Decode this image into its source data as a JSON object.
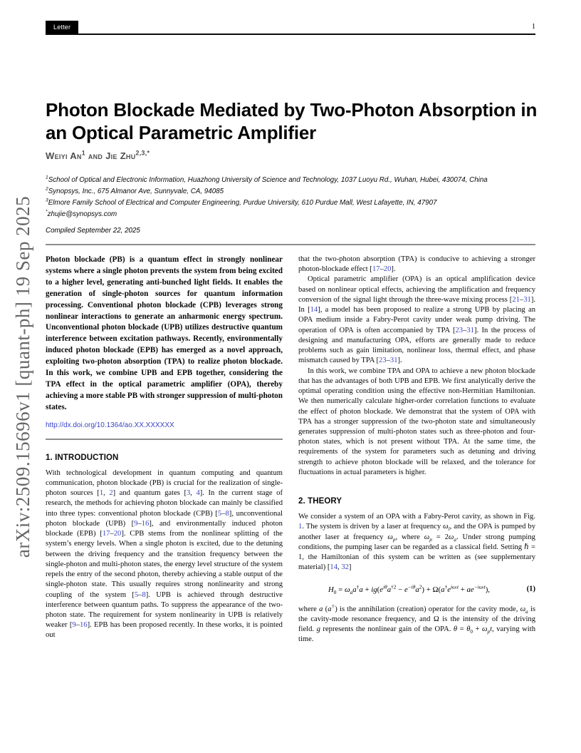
{
  "colors": {
    "link_blue": "#3a45c4",
    "badge_bg": "#000000",
    "badge_text": "#ffffff",
    "author_gray": "#4d4d4d",
    "stamp_gray": "#666666",
    "rule_gray": "#8d8d8d"
  },
  "header": {
    "badge": "Letter",
    "page_number": "1"
  },
  "stamp": {
    "text": "arXiv:2509.15696v1  [quant-ph]  19 Sep 2025"
  },
  "title": "Photon Blockade Mediated by Two-Photon Absorption in an Optical Parametric Amplifier",
  "authors": [
    {
      "t": "Weiyi An",
      "s": "p"
    },
    {
      "t": "1",
      "s": "sup"
    },
    {
      "t": " and Jie Zhu",
      "s": "p"
    },
    {
      "t": "2,3,*",
      "s": "sup"
    }
  ],
  "affiliations": [
    [
      {
        "t": "1",
        "s": "sup"
      },
      {
        "t": "School of Optical and Electronic Information, Huazhong University of Science and Technology, 1037 Luoyu Rd., Wuhan, Hubei, 430074, China",
        "s": "p"
      }
    ],
    [
      {
        "t": "2",
        "s": "sup"
      },
      {
        "t": "Synopsys, Inc., 675 Almanor Ave, Sunnyvale, CA, 94085",
        "s": "p"
      }
    ],
    [
      {
        "t": "3",
        "s": "sup"
      },
      {
        "t": "Elmore Family School of Electrical and Computer Engineering, Purdue University, 610 Purdue Mall, West Lafayette, IN, 47907",
        "s": "p"
      }
    ],
    [
      {
        "t": "*",
        "s": "sup"
      },
      {
        "t": "zhujie@synopsys.com",
        "s": "p"
      }
    ]
  ],
  "compiled": "Compiled September 22, 2025",
  "abstract": "Photon blockade (PB) is a quantum effect in strongly nonlinear systems where a single photon prevents the system from being excited to a higher level, generating anti-bunched light fields. It enables the generation of single-photon sources for quantum information processing. Conventional photon blockade (CPB) leverages strong nonlinear interactions to generate an anharmonic energy spectrum. Unconventional photon blockade (UPB) utilizes destructive quantum interference between excitation pathways. Recently, environmentally induced photon blockade (EPB) has emerged as a novel approach, exploiting two-photon absorption (TPA) to realize photon blockade. In this work, we combine UPB and EPB together, considering the TPA effect in the optical parametric amplifier (OPA), thereby achieving a more stable PB with stronger suppression of multi-photon states.",
  "doi": "http://dx.doi.org/10.1364/ao.XX.XXXXXX",
  "sections": {
    "intro_heading": "1. INTRODUCTION",
    "theory_heading": "2. THEORY"
  },
  "intro_paragraph": [
    {
      "t": "With technological development in quantum computing and quantum communication, photon blockade (PB) is crucial for the realization of single-photon sources [",
      "s": "p"
    },
    {
      "t": "1",
      "s": "link"
    },
    {
      "t": ", ",
      "s": "p"
    },
    {
      "t": "2",
      "s": "link"
    },
    {
      "t": "] and quantum gates [",
      "s": "p"
    },
    {
      "t": "3",
      "s": "link"
    },
    {
      "t": ", ",
      "s": "p"
    },
    {
      "t": "4",
      "s": "link"
    },
    {
      "t": "]. In the current stage of research, the methods for achieving photon blockade can mainly be classified into three types: conventional photon blockade (CPB) [",
      "s": "p"
    },
    {
      "t": "5",
      "s": "link"
    },
    {
      "t": "–",
      "s": "p"
    },
    {
      "t": "8",
      "s": "link"
    },
    {
      "t": "], unconventional photon blockade (UPB) [",
      "s": "p"
    },
    {
      "t": "9",
      "s": "link"
    },
    {
      "t": "–",
      "s": "p"
    },
    {
      "t": "16",
      "s": "link"
    },
    {
      "t": "], and environmentally induced photon blockade (EPB) [",
      "s": "p"
    },
    {
      "t": "17",
      "s": "link"
    },
    {
      "t": "–",
      "s": "p"
    },
    {
      "t": "20",
      "s": "link"
    },
    {
      "t": "]. CPB stems from the nonlinear splitting of the system’s energy levels. When a single photon is excited, due to the detuning between the driving frequency and the transition frequency between the single-photon and multi-photon states, the energy level structure of the system repels the entry of the second photon, thereby achieving a stable output of the single-photon state. This usually requires strong nonlinearity and strong coupling of the system [",
      "s": "p"
    },
    {
      "t": "5",
      "s": "link"
    },
    {
      "t": "–",
      "s": "p"
    },
    {
      "t": "8",
      "s": "link"
    },
    {
      "t": "]. UPB is achieved through destructive interference between quantum paths. To suppress the appearance of the two-photon state. The requirement for system nonlinearity in UPB is relatively weaker [",
      "s": "p"
    },
    {
      "t": "9",
      "s": "link"
    },
    {
      "t": "–",
      "s": "p"
    },
    {
      "t": "16",
      "s": "link"
    },
    {
      "t": "]. EPB has been proposed recently. In these works, it is pointed out",
      "s": "p"
    }
  ],
  "right_col": {
    "para1": [
      {
        "t": "that the two-photon absorption (TPA) is conducive to achieving a stronger photon-blockade effect [",
        "s": "p"
      },
      {
        "t": "17",
        "s": "link"
      },
      {
        "t": "–",
        "s": "p"
      },
      {
        "t": "20",
        "s": "link"
      },
      {
        "t": "].",
        "s": "p"
      }
    ],
    "para2": [
      {
        "t": "Optical parametric amplifier (OPA) is an optical amplification device based on nonlinear optical effects, achieving the amplification and frequency conversion of the signal light through the three-wave mixing process [",
        "s": "p"
      },
      {
        "t": "21",
        "s": "link"
      },
      {
        "t": "–",
        "s": "p"
      },
      {
        "t": "31",
        "s": "link"
      },
      {
        "t": "]. In [",
        "s": "p"
      },
      {
        "t": "14",
        "s": "link"
      },
      {
        "t": "], a model has been proposed to realize a strong UPB by placing an OPA medium inside a Fabry-Perot cavity under weak pump driving. The operation of OPA is often accompanied by TPA [",
        "s": "p"
      },
      {
        "t": "23",
        "s": "link"
      },
      {
        "t": "–",
        "s": "p"
      },
      {
        "t": "31",
        "s": "link"
      },
      {
        "t": "]. In the process of designing and manufacturing OPA, efforts are generally made to reduce problems such as gain limitation, nonlinear loss, thermal effect, and phase mismatch caused by TPA [",
        "s": "p"
      },
      {
        "t": "23",
        "s": "link"
      },
      {
        "t": "–",
        "s": "p"
      },
      {
        "t": "31",
        "s": "link"
      },
      {
        "t": "].",
        "s": "p"
      }
    ],
    "para3": "In this work, we combine TPA and OPA to achieve a new photon blockade that has the advantages of both UPB and EPB. We first analytically derive the optimal operating condition using the effective non-Hermitian Hamiltonian. We then numerically calculate higher-order correlation functions to evaluate the effect of photon blockade. We demonstrat that the system of OPA with TPA has a stronger suppression of the two-photon state and simultaneously generates suppression of multi-photon states such as three-photon and four-photon states, which is not present without TPA. At the same time, the requirements of the system for parameters such as detuning and driving strength to achieve photon blockade will be relaxed, and the tolerance for fluctuations in actual parameters is higher.",
    "theory_para": [
      {
        "t": "We consider a system of an OPA with a Fabry-Perot cavity, as shown in Fig. ",
        "s": "p"
      },
      {
        "t": "1",
        "s": "link"
      },
      {
        "t": ". The system is driven by a laser at frequency ",
        "s": "p"
      },
      {
        "t": "ω",
        "s": "i"
      },
      {
        "t": "l",
        "s": "sub-i"
      },
      {
        "t": ", and the OPA is pumped by another laser at frequency ",
        "s": "p"
      },
      {
        "t": "ω",
        "s": "i"
      },
      {
        "t": "p",
        "s": "sub-i"
      },
      {
        "t": ", where ",
        "s": "p"
      },
      {
        "t": "ω",
        "s": "i"
      },
      {
        "t": "p",
        "s": "sub-i"
      },
      {
        "t": " = 2",
        "s": "p"
      },
      {
        "t": "ω",
        "s": "i"
      },
      {
        "t": "a",
        "s": "sub-i"
      },
      {
        "t": ". Under strong pumping conditions, the pumping laser can be regarded as a classical field. Setting ",
        "s": "p"
      },
      {
        "t": "ℏ",
        "s": "i"
      },
      {
        "t": " = 1, the Hamiltonian of this system can be written as (see supplementary material) [",
        "s": "p"
      },
      {
        "t": "14",
        "s": "link"
      },
      {
        "t": ", ",
        "s": "p"
      },
      {
        "t": "32",
        "s": "link"
      },
      {
        "t": "]",
        "s": "p"
      }
    ],
    "equation": [
      {
        "t": "H",
        "s": "i"
      },
      {
        "t": "0",
        "s": "sub"
      },
      {
        "t": " = ",
        "s": "p"
      },
      {
        "t": "ω",
        "s": "i"
      },
      {
        "t": "a",
        "s": "sub-i"
      },
      {
        "t": "a",
        "s": "i"
      },
      {
        "t": "†",
        "s": "sup"
      },
      {
        "t": "a",
        "s": "i"
      },
      {
        "t": " + ",
        "s": "p"
      },
      {
        "t": "ig",
        "s": "i"
      },
      {
        "t": "(",
        "s": "p"
      },
      {
        "t": "e",
        "s": "i"
      },
      {
        "t": "iθ",
        "s": "sup-i"
      },
      {
        "t": "a",
        "s": "i"
      },
      {
        "t": "†2",
        "s": "sup"
      },
      {
        "t": " − ",
        "s": "p"
      },
      {
        "t": "e",
        "s": "i"
      },
      {
        "t": "−iθ",
        "s": "sup-i"
      },
      {
        "t": "a",
        "s": "i"
      },
      {
        "t": "2",
        "s": "sup"
      },
      {
        "t": ") + Ω(",
        "s": "p"
      },
      {
        "t": "a",
        "s": "i"
      },
      {
        "t": "†",
        "s": "sup"
      },
      {
        "t": "e",
        "s": "i"
      },
      {
        "t": "iωₗt",
        "s": "sup-i"
      },
      {
        "t": " + ",
        "s": "p"
      },
      {
        "t": "ae",
        "s": "i"
      },
      {
        "t": "−iωₗt",
        "s": "sup-i"
      },
      {
        "t": "),",
        "s": "p"
      }
    ],
    "equation_number": "(1)",
    "post_equation": [
      {
        "t": "where ",
        "s": "p"
      },
      {
        "t": "a",
        "s": "i"
      },
      {
        "t": " (",
        "s": "p"
      },
      {
        "t": "a",
        "s": "i"
      },
      {
        "t": "†",
        "s": "sup"
      },
      {
        "t": ") is the annihilation (creation) operator for the cavity mode, ",
        "s": "p"
      },
      {
        "t": "ω",
        "s": "i"
      },
      {
        "t": "a",
        "s": "sub-i"
      },
      {
        "t": " is the cavity-mode resonance frequency, and Ω is the intensity of the driving field. ",
        "s": "p"
      },
      {
        "t": "g",
        "s": "i"
      },
      {
        "t": " represents the nonlinear gain of the OPA. ",
        "s": "p"
      },
      {
        "t": "θ",
        "s": "i"
      },
      {
        "t": " = ",
        "s": "p"
      },
      {
        "t": "θ",
        "s": "i"
      },
      {
        "t": "0",
        "s": "sub"
      },
      {
        "t": " + ",
        "s": "p"
      },
      {
        "t": "ω",
        "s": "i"
      },
      {
        "t": "p",
        "s": "sub-i"
      },
      {
        "t": "t",
        "s": "i"
      },
      {
        "t": ", varying with time.",
        "s": "p"
      }
    ]
  }
}
